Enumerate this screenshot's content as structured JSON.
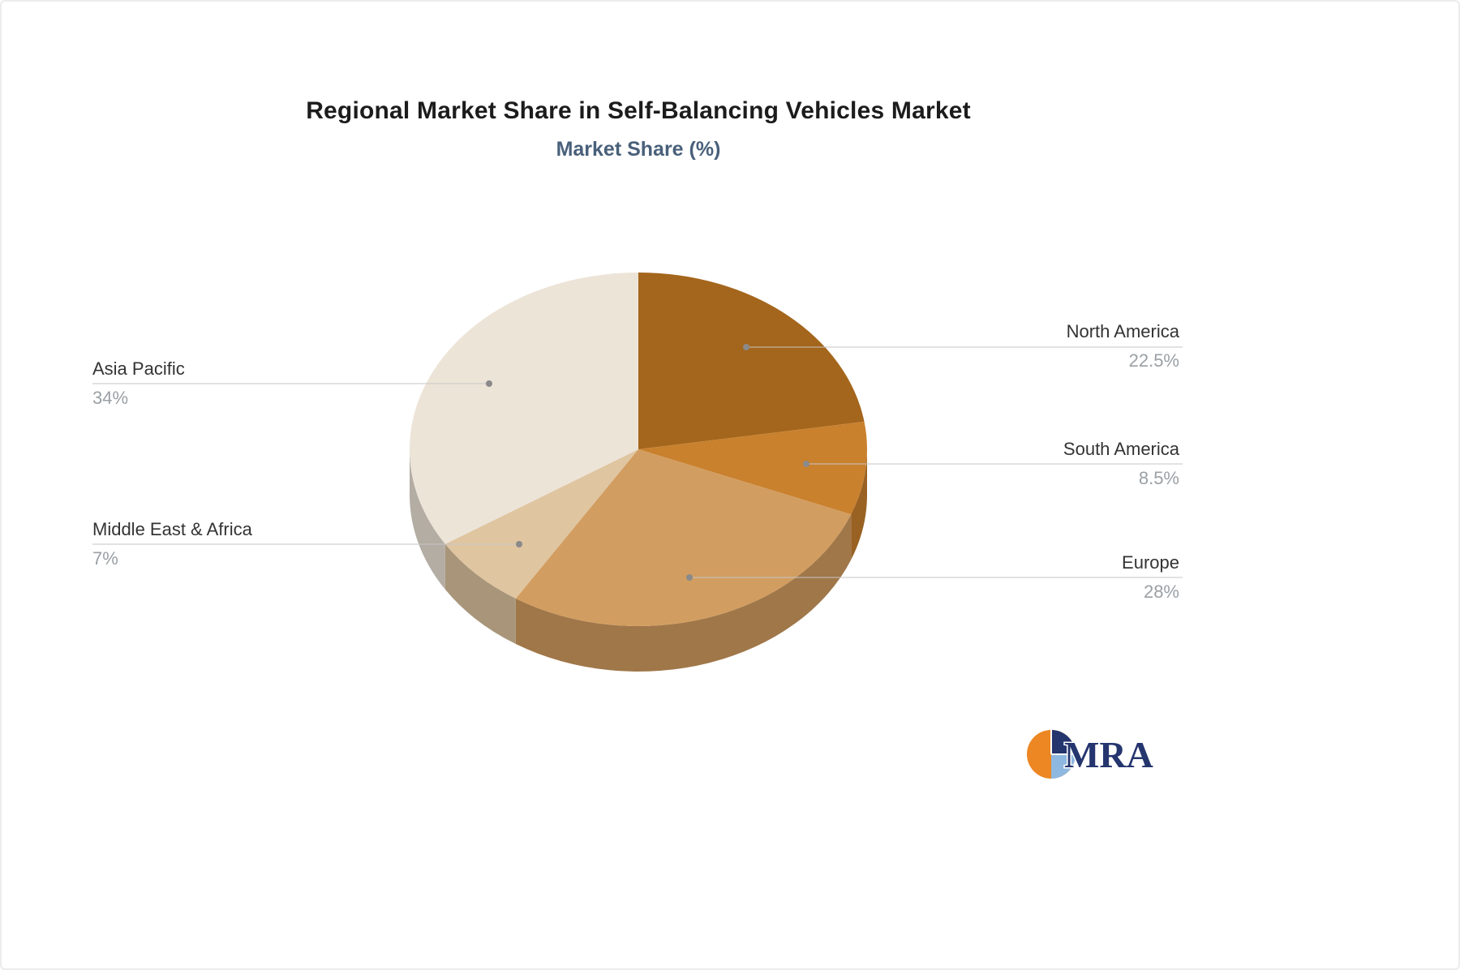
{
  "chart_data": {
    "type": "pie",
    "title": "Regional Market Share in Self-Balancing Vehicles Market",
    "subtitle": "Market Share (%)",
    "direction": "clockwise",
    "start_angle_deg": 0,
    "effect": "3d",
    "legend": "none",
    "labels_position": "outside-with-leader-lines",
    "series": [
      {
        "label": "North America",
        "value": 22.5,
        "display": "22.5%",
        "color": "#a4661c"
      },
      {
        "label": "South America",
        "value": 8.5,
        "display": "8.5%",
        "color": "#c9812e"
      },
      {
        "label": "Europe",
        "value": 28,
        "display": "28%",
        "color": "#d29d60"
      },
      {
        "label": "Middle East & Africa",
        "value": 7,
        "display": "7%",
        "color": "#dfc5a0"
      },
      {
        "label": "Asia Pacific",
        "value": 34,
        "display": "34%",
        "color": "#ede4d8"
      }
    ]
  },
  "branding": {
    "logo_text": "MRA"
  },
  "theme": {
    "background": "#ffffff",
    "title_color": "#1c1c1c",
    "subtitle_color": "#49607a",
    "label_color": "#333333",
    "value_color": "#9aa0a5",
    "leader_line_color": "#c6c6c6",
    "dot_color": "#8a8a8a",
    "logo_orange": "#ec8723",
    "logo_navy": "#25356e",
    "logo_lightblue": "#8fb8e0"
  }
}
